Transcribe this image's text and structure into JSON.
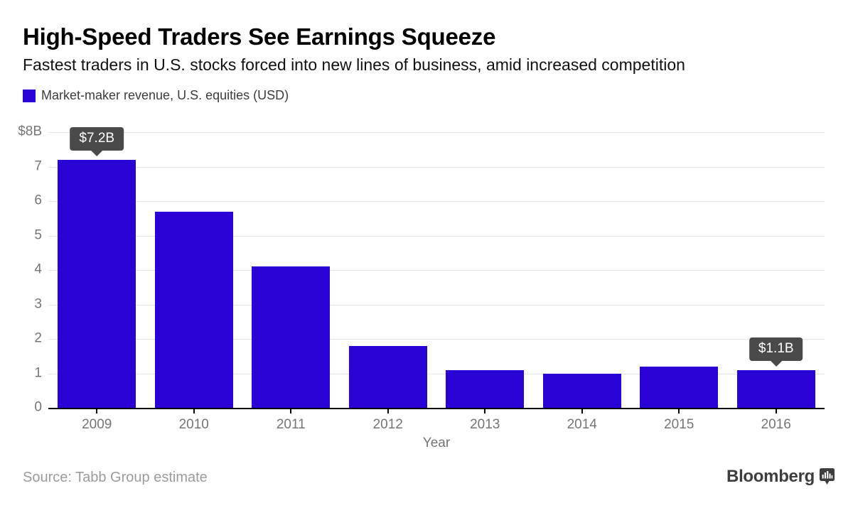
{
  "header": {
    "title": "High-Speed Traders See Earnings Squeeze",
    "subtitle": "Fastest traders in U.S. stocks forced into new lines of business, amid increased competition"
  },
  "legend": {
    "label": "Market-maker revenue, U.S. equities (USD)"
  },
  "chart_data": {
    "type": "bar",
    "title": "High-Speed Traders See Earnings Squeeze",
    "categories": [
      "2009",
      "2010",
      "2011",
      "2012",
      "2013",
      "2014",
      "2015",
      "2016"
    ],
    "values": [
      7.2,
      5.7,
      4.1,
      1.8,
      1.1,
      1.0,
      1.2,
      1.1
    ],
    "series_name": "Market-maker revenue, U.S. equities (USD)",
    "xlabel": "Year",
    "ylabel": "",
    "ylim": [
      0,
      8
    ],
    "yticks": [
      0,
      1,
      2,
      3,
      4,
      5,
      6,
      7,
      8
    ],
    "ytick_labels": [
      "0",
      "1",
      "2",
      "3",
      "4",
      "5",
      "6",
      "7",
      "$8B"
    ],
    "grid": true,
    "legend_position": "top-left",
    "bar_color": "#2A02D5",
    "annotations": [
      {
        "index": 0,
        "category": "2009",
        "label": "$7.2B"
      },
      {
        "index": 7,
        "category": "2016",
        "label": "$1.1B"
      }
    ]
  },
  "colors": {
    "bar": "#2A02D5",
    "callout_bg": "#4A4A4A",
    "callout_text": "#FFFFFF",
    "axis_text": "#757575",
    "gridline": "#E4E4E4",
    "baseline": "#000000",
    "tick": "#000000",
    "source_text": "#9B9B9B",
    "brand": "#3D3D3D"
  },
  "footer": {
    "source": "Source: Tabb Group estimate",
    "brand": "Bloomberg"
  }
}
